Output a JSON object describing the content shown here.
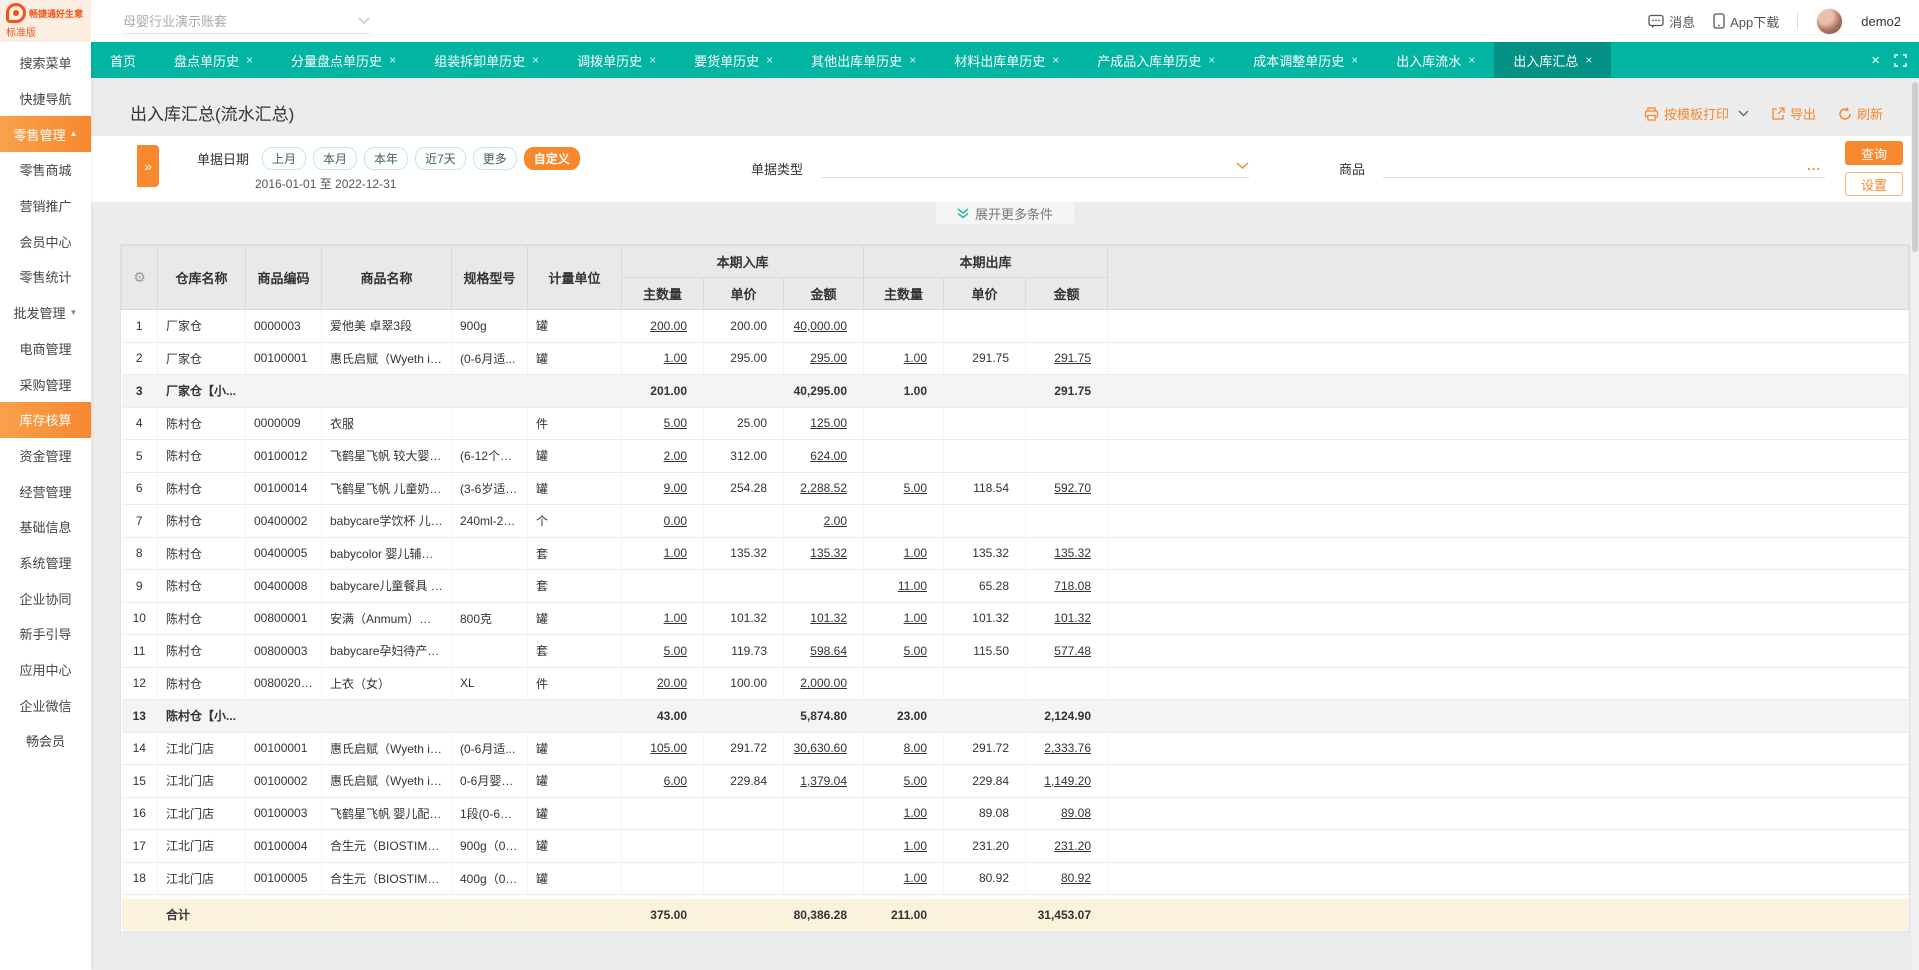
{
  "colors": {
    "teal": "#01b5a2",
    "teal_active_tab": "#029184",
    "orange_accent": "#f7882e",
    "logo_orange": "#f0541e",
    "total_row_bg": "#fbf2dc",
    "subtotal_row_bg": "#f4f4f4"
  },
  "topbar": {
    "logo_title": "畅捷通好生意",
    "logo_edition": "标准版",
    "account_name": "母婴行业演示账套",
    "messages_label": "消息",
    "app_download_label": "App下载",
    "username": "demo2"
  },
  "tabs": [
    {
      "label": "首页",
      "closable": false,
      "active": false
    },
    {
      "label": "盘点单历史",
      "closable": true,
      "active": false
    },
    {
      "label": "分量盘点单历史",
      "closable": true,
      "active": false
    },
    {
      "label": "组装拆卸单历史",
      "closable": true,
      "active": false
    },
    {
      "label": "调拨单历史",
      "closable": true,
      "active": false
    },
    {
      "label": "要货单历史",
      "closable": true,
      "active": false
    },
    {
      "label": "其他出库单历史",
      "closable": true,
      "active": false
    },
    {
      "label": "材料出库单历史",
      "closable": true,
      "active": false
    },
    {
      "label": "产成品入库单历史",
      "closable": true,
      "active": false
    },
    {
      "label": "成本调整单历史",
      "closable": true,
      "active": false
    },
    {
      "label": "出入库流水",
      "closable": true,
      "active": false
    },
    {
      "label": "出入库汇总",
      "closable": true,
      "active": true
    }
  ],
  "sidebar": {
    "items": [
      {
        "label": "搜索菜单",
        "active": false,
        "caret": ""
      },
      {
        "label": "快捷导航",
        "active": false,
        "caret": ""
      },
      {
        "label": "零售管理",
        "active": true,
        "caret": "up"
      },
      {
        "label": "零售商城",
        "active": false,
        "caret": ""
      },
      {
        "label": "营销推广",
        "active": false,
        "caret": ""
      },
      {
        "label": "会员中心",
        "active": false,
        "caret": ""
      },
      {
        "label": "零售统计",
        "active": false,
        "caret": ""
      },
      {
        "label": "批发管理",
        "active": false,
        "caret": "down"
      },
      {
        "label": "电商管理",
        "active": false,
        "caret": ""
      },
      {
        "label": "采购管理",
        "active": false,
        "caret": ""
      },
      {
        "label": "库存核算",
        "active": true,
        "caret": ""
      },
      {
        "label": "资金管理",
        "active": false,
        "caret": ""
      },
      {
        "label": "经营管理",
        "active": false,
        "caret": ""
      },
      {
        "label": "基础信息",
        "active": false,
        "caret": ""
      },
      {
        "label": "系统管理",
        "active": false,
        "caret": ""
      },
      {
        "label": "企业协同",
        "active": false,
        "caret": ""
      },
      {
        "label": "新手引导",
        "active": false,
        "caret": ""
      },
      {
        "label": "应用中心",
        "active": false,
        "caret": ""
      },
      {
        "label": "企业微信",
        "active": false,
        "caret": ""
      },
      {
        "label": "畅会员",
        "active": false,
        "caret": ""
      }
    ]
  },
  "page": {
    "title": "出入库汇总(流水汇总)",
    "actions": {
      "print": "按模板打印",
      "export": "导出",
      "refresh": "刷新"
    }
  },
  "filters": {
    "collapse_glyph": "»",
    "date": {
      "label": "单据日期",
      "presets": [
        "上月",
        "本月",
        "本年",
        "近7天",
        "更多"
      ],
      "custom": "自定义",
      "range": "2016-01-01 至 2022-12-31"
    },
    "doc_type_label": "单据类型",
    "product_label": "商品",
    "product_ellipsis": "...",
    "search_button": "查询",
    "settings_button": "设置",
    "expand_more": "展开更多条件"
  },
  "table": {
    "gear_glyph": "⚙",
    "columns": [
      "仓库名称",
      "商品编码",
      "商品名称",
      "规格型号",
      "计量单位"
    ],
    "group_in": {
      "label": "本期入库",
      "sub": [
        "主数量",
        "单价",
        "金额"
      ]
    },
    "group_out": {
      "label": "本期出库",
      "sub": [
        "主数量",
        "单价",
        "金额"
      ]
    },
    "rows": [
      {
        "no": "1",
        "type": "normal",
        "warehouse": "厂家仓",
        "code": "0000003",
        "name": "爱他美 卓翠3段",
        "spec": "900g",
        "unit": "罐",
        "in": [
          "200.00",
          "200.00",
          "40,000.00"
        ],
        "out": [
          "",
          "",
          ""
        ]
      },
      {
        "no": "2",
        "type": "normal",
        "warehouse": "厂家仓",
        "code": "00100001",
        "name": "惠氏启赋（Wyeth illu...",
        "spec": "(0-6月适...",
        "unit": "罐",
        "in": [
          "1.00",
          "295.00",
          "295.00"
        ],
        "out": [
          "1.00",
          "291.75",
          "291.75"
        ]
      },
      {
        "no": "3",
        "type": "subtotal",
        "warehouse": "厂家仓【小...",
        "code": "",
        "name": "",
        "spec": "",
        "unit": "",
        "in": [
          "201.00",
          "",
          "40,295.00"
        ],
        "out": [
          "1.00",
          "",
          "291.75"
        ]
      },
      {
        "no": "4",
        "type": "normal",
        "warehouse": "陈村仓",
        "code": "0000009",
        "name": "衣服",
        "spec": "",
        "unit": "件",
        "in": [
          "5.00",
          "25.00",
          "125.00"
        ],
        "out": [
          "",
          "",
          ""
        ]
      },
      {
        "no": "5",
        "type": "normal",
        "warehouse": "陈村仓",
        "code": "00100012",
        "name": "飞鹤星飞帆 较大婴儿配...",
        "spec": "(6-12个月...",
        "unit": "罐",
        "in": [
          "2.00",
          "312.00",
          "624.00"
        ],
        "out": [
          "",
          "",
          ""
        ]
      },
      {
        "no": "6",
        "type": "normal",
        "warehouse": "陈村仓",
        "code": "00100014",
        "name": "飞鹤星飞帆 儿童奶粉 4...",
        "spec": "(3-6岁适用)...",
        "unit": "罐",
        "in": [
          "9.00",
          "254.28",
          "2,288.52"
        ],
        "out": [
          "5.00",
          "118.54",
          "592.70"
        ]
      },
      {
        "no": "7",
        "type": "normal",
        "warehouse": "陈村仓",
        "code": "00400002",
        "name": "babycare学饮杯 儿童...",
        "spec": "240ml-2716",
        "unit": "个",
        "in": [
          "0.00",
          "",
          "2.00"
        ],
        "out": [
          "",
          "",
          ""
        ]
      },
      {
        "no": "8",
        "type": "normal",
        "warehouse": "陈村仓",
        "code": "00400005",
        "name": "babycolor 婴儿辅食机 ...",
        "spec": "",
        "unit": "套",
        "in": [
          "1.00",
          "135.32",
          "135.32"
        ],
        "out": [
          "1.00",
          "135.32",
          "135.32"
        ]
      },
      {
        "no": "9",
        "type": "normal",
        "warehouse": "陈村仓",
        "code": "00400008",
        "name": "babycare儿童餐具 婴...",
        "spec": "",
        "unit": "套",
        "in": [
          "",
          "",
          ""
        ],
        "out": [
          "11.00",
          "65.28",
          "718.08"
        ]
      },
      {
        "no": "10",
        "type": "normal",
        "warehouse": "陈村仓",
        "code": "00800001",
        "name": "安满（Anmum）智孕...",
        "spec": "800克",
        "unit": "罐",
        "in": [
          "1.00",
          "101.32",
          "101.32"
        ],
        "out": [
          "1.00",
          "101.32",
          "101.32"
        ]
      },
      {
        "no": "11",
        "type": "normal",
        "warehouse": "陈村仓",
        "code": "00800003",
        "name": "babycare孕妇待产包 ...",
        "spec": "",
        "unit": "套",
        "in": [
          "5.00",
          "119.73",
          "598.64"
        ],
        "out": [
          "5.00",
          "115.50",
          "577.48"
        ]
      },
      {
        "no": "12",
        "type": "normal",
        "warehouse": "陈村仓",
        "code": "008002000...",
        "name": "上衣（女）",
        "spec": "XL",
        "unit": "件",
        "in": [
          "20.00",
          "100.00",
          "2,000.00"
        ],
        "out": [
          "",
          "",
          ""
        ]
      },
      {
        "no": "13",
        "type": "subtotal",
        "warehouse": "陈村仓【小...",
        "code": "",
        "name": "",
        "spec": "",
        "unit": "",
        "in": [
          "43.00",
          "",
          "5,874.80"
        ],
        "out": [
          "23.00",
          "",
          "2,124.90"
        ]
      },
      {
        "no": "14",
        "type": "normal",
        "warehouse": "江北门店",
        "code": "00100001",
        "name": "惠氏启赋（Wyeth illu...",
        "spec": "(0-6月适...",
        "unit": "罐",
        "in": [
          "105.00",
          "291.72",
          "30,630.60"
        ],
        "out": [
          "8.00",
          "291.72",
          "2,333.76"
        ]
      },
      {
        "no": "15",
        "type": "normal",
        "warehouse": "江北门店",
        "code": "00100002",
        "name": "惠氏启赋（Wyeth illu...",
        "spec": "0-6月婴儿...",
        "unit": "罐",
        "in": [
          "6.00",
          "229.84",
          "1,379.04"
        ],
        "out": [
          "5.00",
          "229.84",
          "1,149.20"
        ]
      },
      {
        "no": "16",
        "type": "normal",
        "warehouse": "江北门店",
        "code": "00100003",
        "name": "飞鹤星飞帆 婴儿配方奶...",
        "spec": "1段(0-6个...",
        "unit": "罐",
        "in": [
          "",
          "",
          ""
        ],
        "out": [
          "1.00",
          "89.08",
          "89.08"
        ]
      },
      {
        "no": "17",
        "type": "normal",
        "warehouse": "江北门店",
        "code": "00100004",
        "name": "合生元（BIOSTIME）...",
        "spec": "900g（0-6...",
        "unit": "罐",
        "in": [
          "",
          "",
          ""
        ],
        "out": [
          "1.00",
          "231.20",
          "231.20"
        ]
      },
      {
        "no": "18",
        "type": "normal",
        "warehouse": "江北门店",
        "code": "00100005",
        "name": "合生元（BIOSTIME）...",
        "spec": "400g（0-6...",
        "unit": "罐",
        "in": [
          "",
          "",
          ""
        ],
        "out": [
          "1.00",
          "80.92",
          "80.92"
        ]
      },
      {
        "no": "",
        "type": "total",
        "warehouse": "合计",
        "code": "",
        "name": "",
        "spec": "",
        "unit": "",
        "in": [
          "375.00",
          "",
          "80,386.28"
        ],
        "out": [
          "211.00",
          "",
          "31,453.07"
        ]
      }
    ]
  }
}
